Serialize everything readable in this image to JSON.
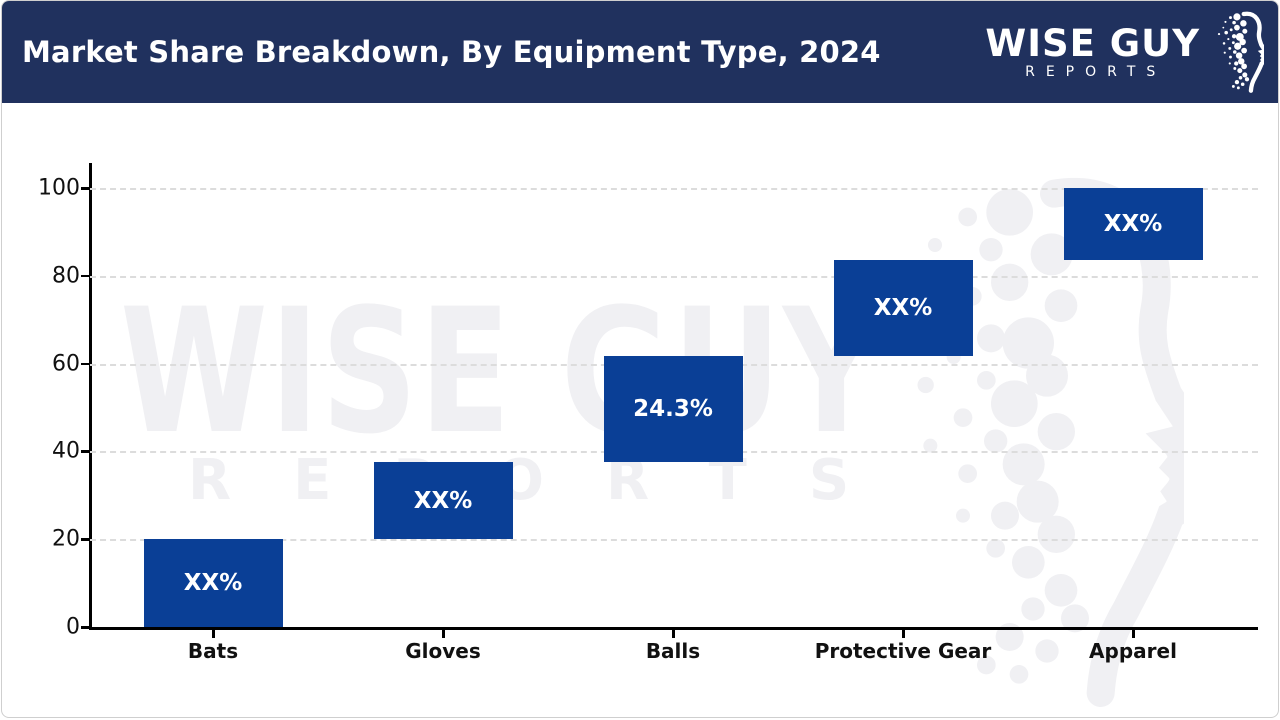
{
  "header": {
    "title": "Market Share Breakdown, By Equipment Type, 2024",
    "logo": {
      "line1": "WISE GUY",
      "line2": "REPORTS"
    }
  },
  "watermark": {
    "line1": "WISE GUY",
    "line2": "REPORTS"
  },
  "colors": {
    "header_bg": "#20315e",
    "bar": "#0a3f96",
    "bar_label": "#ffffff",
    "gridline": "#dcdcdc",
    "axis": "#000000",
    "watermark": "#f0f0f3"
  },
  "chart_data": {
    "type": "bar",
    "subtype": "waterfall",
    "title": "Market Share Breakdown, By Equipment Type, 2024",
    "categories": [
      "Bats",
      "Gloves",
      "Balls",
      "Protective Gear",
      "Apparel"
    ],
    "bars": [
      {
        "category": "Bats",
        "start": 0,
        "end": 20,
        "value": 20,
        "label": "XX%"
      },
      {
        "category": "Gloves",
        "start": 20,
        "end": 37.5,
        "value": 17.5,
        "label": "XX%"
      },
      {
        "category": "Balls",
        "start": 37.5,
        "end": 61.8,
        "value": 24.3,
        "label": "24.3%"
      },
      {
        "category": "Protective Gear",
        "start": 61.8,
        "end": 83.6,
        "value": 21.8,
        "label": "XX%"
      },
      {
        "category": "Apparel",
        "start": 83.6,
        "end": 100,
        "value": 16.4,
        "label": "XX%"
      }
    ],
    "ylim": [
      0,
      100
    ],
    "yticks": [
      0,
      20,
      40,
      60,
      80,
      100
    ],
    "ytick_labels": [
      "0",
      "20",
      "40",
      "60",
      "80",
      "100"
    ],
    "xlabel": "",
    "ylabel": "",
    "grid": "horizontal-dashed",
    "legend": "none"
  }
}
